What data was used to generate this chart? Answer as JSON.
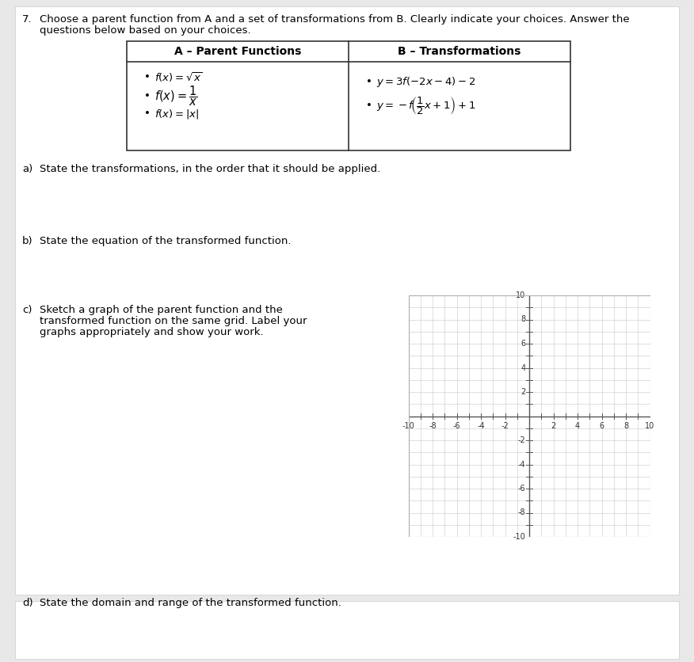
{
  "title_number": "7.",
  "title_line1": "Choose a parent function from A and a set of transformations from B. Clearly indicate your choices. Answer the",
  "title_line2": "questions below based on your choices.",
  "table_header_A": "A – Parent Functions",
  "table_header_B": "B – Transformations",
  "question_a_label": "a)",
  "question_a_text": "State the transformations, in the order that it should be applied.",
  "question_b_label": "b)",
  "question_b_text": "State the equation of the transformed function.",
  "question_c_label": "c)",
  "question_c_line1": "Sketch a graph of the parent function and the",
  "question_c_line2": "transformed function on the same grid. Label your",
  "question_c_line3": "graphs appropriately and show your work.",
  "question_d_label": "d)",
  "question_d_text": "State the domain and range of the transformed function.",
  "page_bg": "#e8e8e8",
  "panel_bg": "#ffffff",
  "text_color": "#000000",
  "grid_line_color": "#c8c8c8",
  "axis_label_color": "#555555",
  "fontsize": 9.5
}
